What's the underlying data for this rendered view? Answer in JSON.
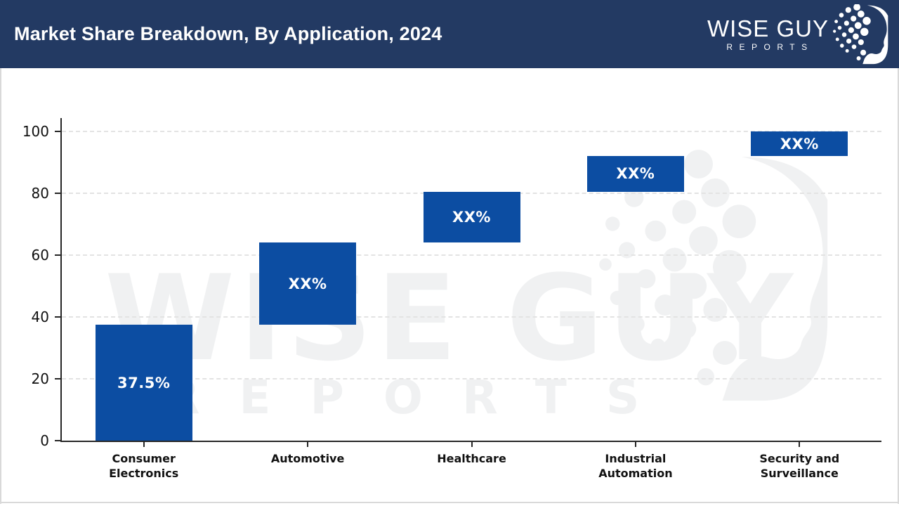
{
  "header": {
    "title": "Market Share Breakdown, By Application, 2024",
    "logo": {
      "line1": "WISE GUY",
      "line2": "REPORTS"
    }
  },
  "watermark": {
    "line1": "WISE GUY",
    "line2": "REPORTS"
  },
  "colors": {
    "header_bg": "#233A63",
    "bar": "#0C4DA2",
    "axis": "#262626",
    "grid": "#e3e3e3",
    "bar_label": "#ffffff",
    "frame": "#d9d9d9"
  },
  "chart_data": {
    "type": "bar",
    "subtype": "waterfall",
    "title": "Market Share Breakdown, By Application, 2024",
    "categories": [
      "Consumer\nElectronics",
      "Automotive",
      "Healthcare",
      "Industrial\nAutomation",
      "Security and\nSurveillance"
    ],
    "segments": [
      {
        "category": "Consumer Electronics",
        "start": 0,
        "end": 37.5,
        "label": "37.5%"
      },
      {
        "category": "Automotive",
        "start": 37.5,
        "end": 64,
        "label": "XX%"
      },
      {
        "category": "Healthcare",
        "start": 64,
        "end": 80.5,
        "label": "XX%"
      },
      {
        "category": "Industrial Automation",
        "start": 80.5,
        "end": 92,
        "label": "XX%"
      },
      {
        "category": "Security and Surveillance",
        "start": 92,
        "end": 100,
        "label": "XX%"
      }
    ],
    "ylim": [
      0,
      100
    ],
    "yticks": [
      0,
      20,
      40,
      60,
      80,
      100
    ],
    "grid": "dashed-horizontal",
    "legend": "none",
    "bar_color": "#0C4DA2",
    "bar_label_color": "#ffffff"
  }
}
